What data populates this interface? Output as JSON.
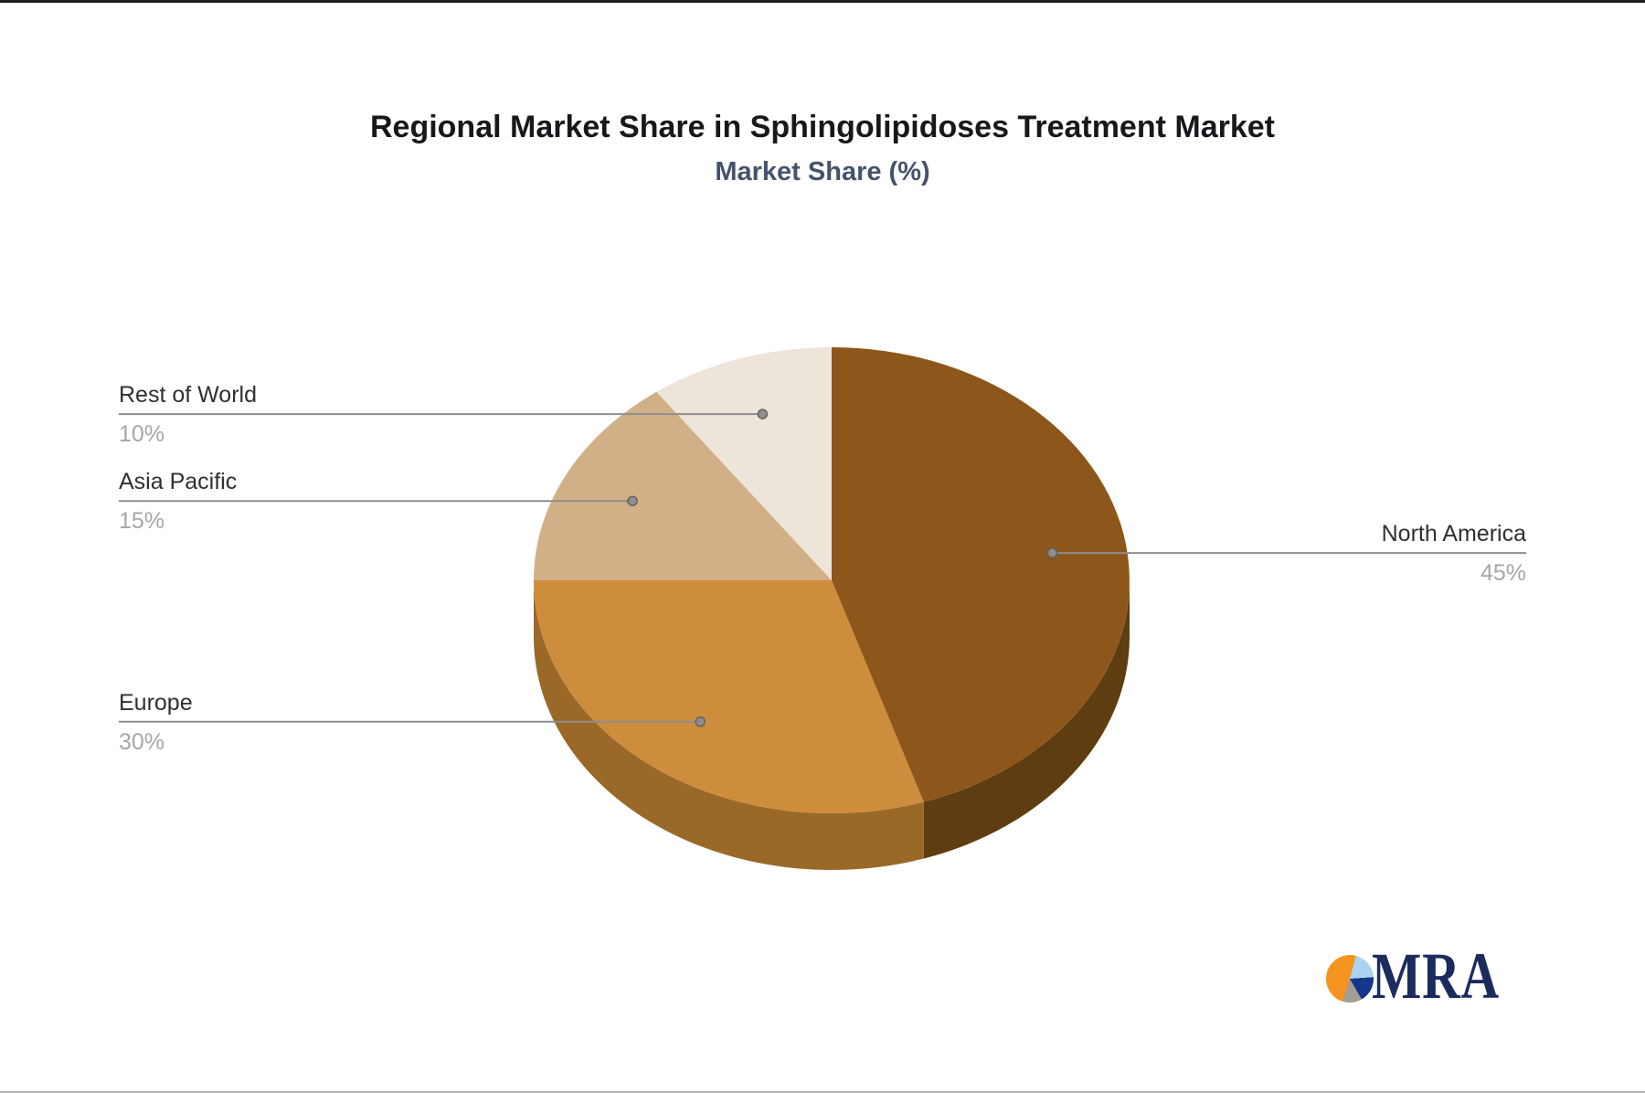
{
  "page": {
    "title": "Regional Market Share in Sphingolipidoses Treatment Market",
    "subtitle": "Market Share (%)"
  },
  "chart_data": {
    "type": "pie",
    "style": "3d-extruded",
    "title": "Regional Market Share in Sphingolipidoses Treatment Market",
    "subtitle": "Market Share (%)",
    "unit": "%",
    "start_angle": "top",
    "direction": "clockwise",
    "legend_position": "leader-labels",
    "slices": [
      {
        "label": "North America",
        "value": 45,
        "pct_text": "45%",
        "color": "#8D561A",
        "wall_color": "#5E3D10",
        "label_side": "right"
      },
      {
        "label": "Europe",
        "value": 30,
        "pct_text": "30%",
        "color": "#CE8D3D",
        "wall_color": "#9A6928",
        "label_side": "left"
      },
      {
        "label": "Asia Pacific",
        "value": 15,
        "pct_text": "15%",
        "color": "#D2B087",
        "wall_color": "#A8895E",
        "label_side": "left"
      },
      {
        "label": "Rest of World",
        "value": 10,
        "pct_text": "10%",
        "color": "#EDE4DA",
        "wall_color": "#C8B9A6",
        "label_side": "left"
      }
    ],
    "leader_line_color": "#8E8E8E",
    "leader_dot_color": "#8f8f8f",
    "label_text_color": "#303030",
    "pct_text_color": "#a6a6a6"
  },
  "branding": {
    "logo_text": "MRA",
    "logo_text_color": "#1b2b5e",
    "icon_colors": {
      "orange": "#F5941F",
      "light_blue": "#A9D3EE",
      "navy": "#16368C",
      "gray": "#A39D97"
    }
  }
}
